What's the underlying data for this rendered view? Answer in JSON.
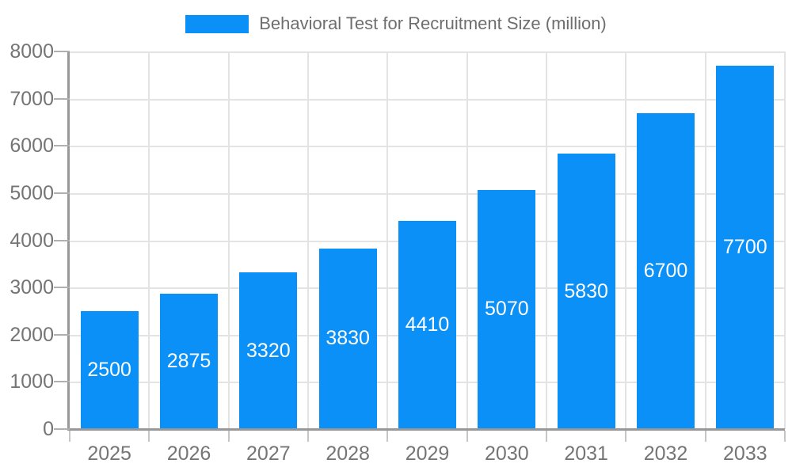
{
  "chart_data": {
    "type": "bar",
    "title": "Behavioral Test for Recruitment Size (million)",
    "legend": [
      "Behavioral Test for Recruitment Size (million)"
    ],
    "legend_position": "top-center",
    "categories": [
      "2025",
      "2026",
      "2027",
      "2028",
      "2029",
      "2030",
      "2031",
      "2032",
      "2033"
    ],
    "values": [
      2500,
      2875,
      3320,
      3830,
      4410,
      5070,
      5830,
      6700,
      7700
    ],
    "xlabel": "",
    "ylabel": "",
    "ylim": [
      0,
      8000
    ],
    "yticks": [
      0,
      1000,
      2000,
      3000,
      4000,
      5000,
      6000,
      7000,
      8000
    ],
    "grid": true,
    "colors": {
      "bar": "#0a90f6",
      "bar_label": "#ffffff",
      "axis_text": "#757575",
      "legend_text": "#6e6e6e",
      "gridline": "#e3e3e3",
      "axis_line": "#989898",
      "y_tick": "#b0b0b0",
      "x_tick": "#c6c6c6",
      "background": "#ffffff"
    }
  }
}
